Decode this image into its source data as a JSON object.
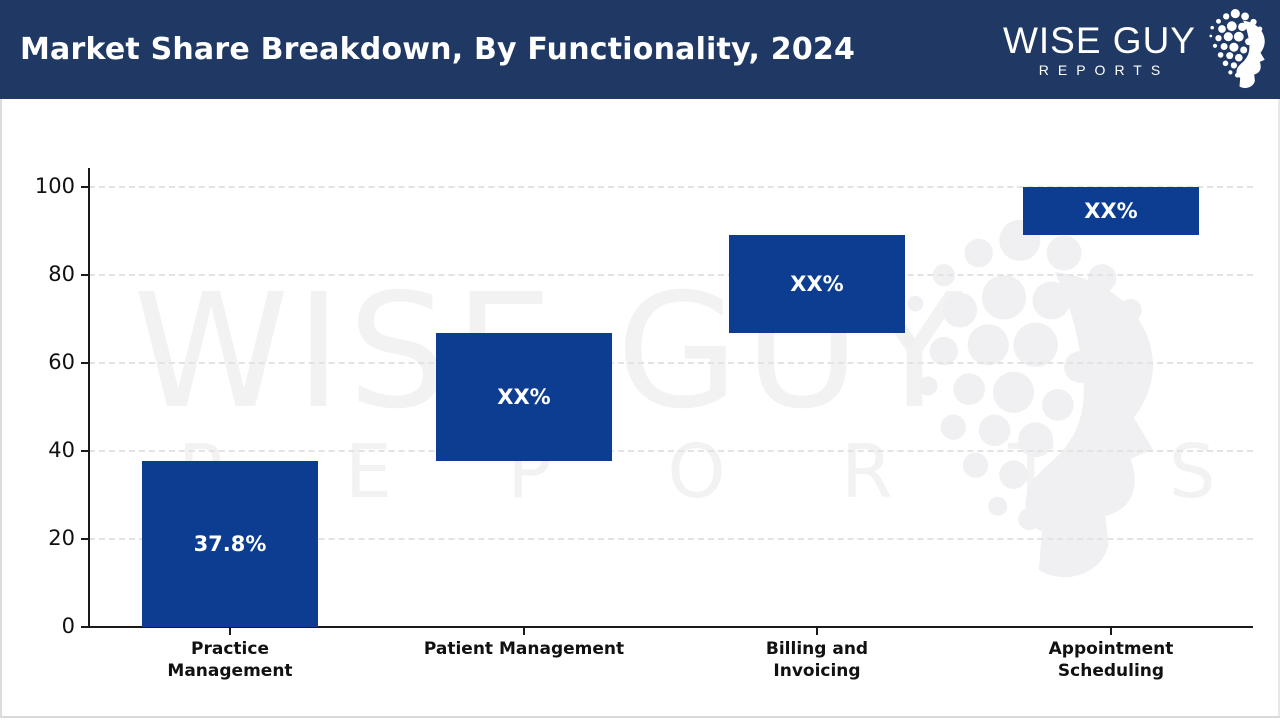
{
  "header": {
    "title": "Market Share Breakdown, By Functionality, 2024",
    "bg_color": "#203864",
    "logo": {
      "line1": "WISE GUY",
      "line2": "REPORTS"
    }
  },
  "watermark": {
    "line1": "WISE GUY",
    "line2": "R E P O R T S"
  },
  "chart_data": {
    "type": "bar",
    "variant": "waterfall (floating cumulative segments)",
    "title": "Market Share Breakdown, By Functionality, 2024",
    "categories": [
      "Practice Management",
      "Patient Management",
      "Billing and Invoicing",
      "Appointment Scheduling"
    ],
    "x_tick_labels": [
      "Practice\nManagement",
      "Patient Management",
      "Billing and\nInvoicing",
      "Appointment\nScheduling"
    ],
    "segments": [
      {
        "category": "Practice Management",
        "start": 0,
        "end": 37.8,
        "value": 37.8,
        "value_label": "37.8%"
      },
      {
        "category": "Patient Management",
        "start": 37.8,
        "end": 66.9,
        "value": 29.1,
        "value_label": "XX%"
      },
      {
        "category": "Billing and Invoicing",
        "start": 66.9,
        "end": 89.0,
        "value": 22.1,
        "value_label": "XX%"
      },
      {
        "category": "Appointment Scheduling",
        "start": 89.0,
        "end": 100.0,
        "value": 11.0,
        "value_label": "XX%"
      }
    ],
    "ylim": [
      0,
      100
    ],
    "y_ticks": [
      0,
      20,
      40,
      60,
      80,
      100
    ],
    "grid": "horizontal-dashed",
    "legend": "none",
    "bar_color": "#0d3d90",
    "value_label_color": "#ffffff",
    "axis_color": "#1a1a1a"
  }
}
